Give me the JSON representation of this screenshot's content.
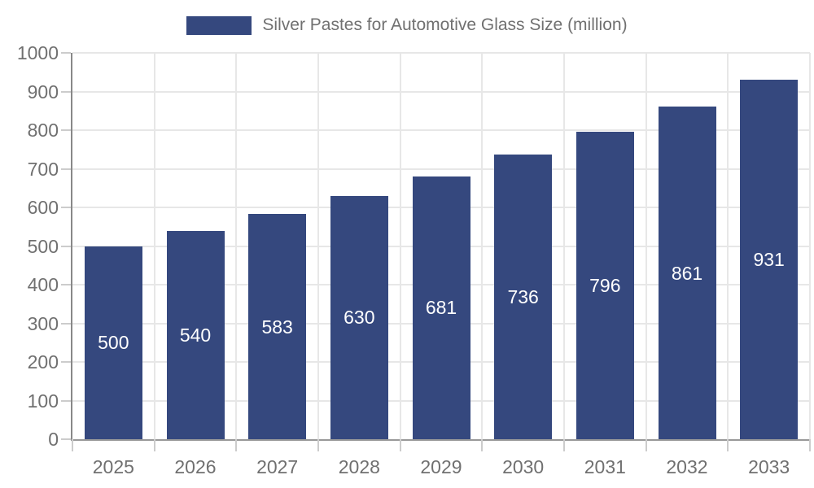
{
  "chart_data": {
    "type": "bar",
    "title": "Silver Pastes for Automotive Glass Size (million)",
    "categories": [
      "2025",
      "2026",
      "2027",
      "2028",
      "2029",
      "2030",
      "2031",
      "2032",
      "2033"
    ],
    "values": [
      500,
      540,
      583,
      630,
      681,
      736,
      796,
      861,
      931
    ],
    "xlabel": "",
    "ylabel": "",
    "ylim": [
      0,
      1000
    ],
    "ytick_step": 100,
    "grid": "horizontal and vertical gridlines on",
    "legend_position": "top-center",
    "bar_value_labels": "white, centered inside bars",
    "colors": {
      "bar": "#35487E",
      "bar_label": "#ffffff",
      "grid": "#e7e7e7",
      "axis_y_line": "#888888",
      "axis_x_line": "#999999",
      "tick_mark": "#cccccc",
      "tick_text": "#707070",
      "title_text": "#707070"
    }
  }
}
